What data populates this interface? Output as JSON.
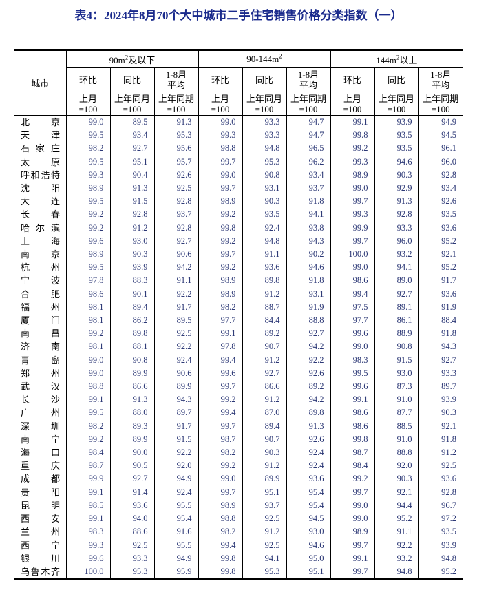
{
  "title": "表4：2024年8月70个大中城市二手住宅销售价格分类指数（一）",
  "colors": {
    "title": "#1a2a8c",
    "value": "#2c3876",
    "text": "#000000",
    "border": "#000000",
    "background": "#ffffff"
  },
  "table": {
    "city_header": "城市",
    "groups": [
      {
        "pre": "90m",
        "sup": "2",
        "post": "及以下"
      },
      {
        "pre": "90-144m",
        "sup": "2",
        "post": ""
      },
      {
        "pre": "144m",
        "sup": "2",
        "post": "以上"
      }
    ],
    "sub_headers": [
      "环比",
      "同比",
      "1-8月\n平均"
    ],
    "base_labels": [
      "上月\n=100",
      "上年同月\n=100",
      "上年同期\n=100"
    ],
    "rows": [
      {
        "city": "北京",
        "values": [
          "99.0",
          "89.5",
          "91.3",
          "99.0",
          "93.3",
          "94.7",
          "99.1",
          "93.9",
          "94.9"
        ]
      },
      {
        "city": "天津",
        "values": [
          "99.5",
          "93.4",
          "95.3",
          "99.3",
          "93.3",
          "94.7",
          "99.8",
          "93.5",
          "94.5"
        ]
      },
      {
        "city": "石家庄",
        "values": [
          "98.2",
          "92.7",
          "95.6",
          "98.8",
          "94.8",
          "96.5",
          "99.2",
          "93.5",
          "96.1"
        ]
      },
      {
        "city": "太原",
        "values": [
          "99.5",
          "95.1",
          "95.7",
          "99.7",
          "95.3",
          "96.2",
          "99.3",
          "94.6",
          "96.0"
        ]
      },
      {
        "city": "呼和浩特",
        "values": [
          "99.3",
          "90.4",
          "92.6",
          "99.0",
          "90.8",
          "93.4",
          "98.9",
          "90.3",
          "92.8"
        ]
      },
      {
        "city": "沈阳",
        "values": [
          "98.9",
          "91.3",
          "92.5",
          "99.7",
          "93.1",
          "93.7",
          "99.0",
          "92.9",
          "93.4"
        ]
      },
      {
        "city": "大连",
        "values": [
          "99.5",
          "91.5",
          "92.8",
          "98.9",
          "90.3",
          "91.8",
          "99.7",
          "91.3",
          "92.6"
        ]
      },
      {
        "city": "长春",
        "values": [
          "99.2",
          "92.8",
          "93.7",
          "99.2",
          "93.5",
          "94.1",
          "99.3",
          "92.8",
          "93.5"
        ]
      },
      {
        "city": "哈尔滨",
        "values": [
          "99.2",
          "91.2",
          "92.8",
          "99.8",
          "92.4",
          "93.8",
          "99.9",
          "93.3",
          "93.6"
        ]
      },
      {
        "city": "上海",
        "values": [
          "99.6",
          "93.0",
          "92.7",
          "99.2",
          "94.8",
          "94.3",
          "99.7",
          "96.0",
          "95.2"
        ]
      },
      {
        "city": "南京",
        "values": [
          "98.9",
          "90.3",
          "90.6",
          "99.7",
          "91.1",
          "90.2",
          "100.0",
          "93.2",
          "92.1"
        ]
      },
      {
        "city": "杭州",
        "values": [
          "99.5",
          "93.9",
          "94.2",
          "99.2",
          "93.6",
          "94.6",
          "99.0",
          "94.1",
          "95.2"
        ]
      },
      {
        "city": "宁波",
        "values": [
          "97.8",
          "88.3",
          "91.1",
          "98.9",
          "89.8",
          "91.8",
          "98.6",
          "89.0",
          "91.7"
        ]
      },
      {
        "city": "合肥",
        "values": [
          "98.6",
          "90.1",
          "92.2",
          "98.9",
          "91.2",
          "93.1",
          "99.4",
          "92.7",
          "93.6"
        ]
      },
      {
        "city": "福州",
        "values": [
          "98.1",
          "89.4",
          "91.7",
          "98.2",
          "88.7",
          "91.9",
          "97.5",
          "89.1",
          "91.9"
        ]
      },
      {
        "city": "厦门",
        "values": [
          "98.1",
          "86.2",
          "89.5",
          "97.7",
          "84.4",
          "88.8",
          "97.7",
          "86.1",
          "88.4"
        ]
      },
      {
        "city": "南昌",
        "values": [
          "99.2",
          "89.8",
          "92.5",
          "99.1",
          "89.2",
          "92.7",
          "99.6",
          "88.9",
          "91.8"
        ]
      },
      {
        "city": "济南",
        "values": [
          "98.1",
          "88.1",
          "92.2",
          "97.8",
          "90.7",
          "94.2",
          "99.0",
          "90.8",
          "94.3"
        ]
      },
      {
        "city": "青岛",
        "values": [
          "99.0",
          "90.8",
          "92.4",
          "99.4",
          "91.2",
          "92.2",
          "98.3",
          "91.5",
          "92.7"
        ]
      },
      {
        "city": "郑州",
        "values": [
          "99.0",
          "89.9",
          "90.6",
          "99.6",
          "92.7",
          "92.6",
          "99.5",
          "93.0",
          "93.3"
        ]
      },
      {
        "city": "武汉",
        "values": [
          "98.8",
          "86.6",
          "89.9",
          "99.7",
          "86.6",
          "89.2",
          "99.6",
          "87.3",
          "89.7"
        ]
      },
      {
        "city": "长沙",
        "values": [
          "99.1",
          "91.3",
          "94.3",
          "99.2",
          "91.2",
          "94.2",
          "99.1",
          "91.0",
          "93.9"
        ]
      },
      {
        "city": "广州",
        "values": [
          "99.5",
          "88.0",
          "89.7",
          "99.4",
          "87.0",
          "89.8",
          "98.6",
          "87.7",
          "90.3"
        ]
      },
      {
        "city": "深圳",
        "values": [
          "98.2",
          "89.3",
          "91.7",
          "99.7",
          "89.4",
          "91.3",
          "98.6",
          "88.5",
          "92.1"
        ]
      },
      {
        "city": "南宁",
        "values": [
          "99.2",
          "89.9",
          "91.5",
          "98.7",
          "90.7",
          "92.6",
          "99.8",
          "91.0",
          "91.8"
        ]
      },
      {
        "city": "海口",
        "values": [
          "98.4",
          "90.0",
          "92.2",
          "98.2",
          "90.3",
          "92.4",
          "98.7",
          "88.8",
          "91.2"
        ]
      },
      {
        "city": "重庆",
        "values": [
          "98.7",
          "90.5",
          "92.0",
          "99.2",
          "91.2",
          "92.4",
          "98.4",
          "92.0",
          "92.5"
        ]
      },
      {
        "city": "成都",
        "values": [
          "99.9",
          "92.7",
          "94.9",
          "99.0",
          "89.9",
          "93.6",
          "99.2",
          "90.3",
          "93.6"
        ]
      },
      {
        "city": "贵阳",
        "values": [
          "99.1",
          "91.4",
          "92.4",
          "99.7",
          "95.1",
          "95.4",
          "99.7",
          "92.1",
          "92.8"
        ]
      },
      {
        "city": "昆明",
        "values": [
          "98.5",
          "93.6",
          "95.5",
          "98.9",
          "93.7",
          "95.4",
          "99.0",
          "94.4",
          "96.7"
        ]
      },
      {
        "city": "西安",
        "values": [
          "99.1",
          "94.0",
          "95.4",
          "98.8",
          "92.5",
          "94.5",
          "99.0",
          "95.2",
          "97.2"
        ]
      },
      {
        "city": "兰州",
        "values": [
          "98.3",
          "88.6",
          "91.6",
          "98.2",
          "91.2",
          "93.0",
          "98.9",
          "91.1",
          "93.5"
        ]
      },
      {
        "city": "西宁",
        "values": [
          "99.3",
          "92.5",
          "95.5",
          "99.4",
          "92.5",
          "94.6",
          "99.7",
          "92.2",
          "93.9"
        ]
      },
      {
        "city": "银川",
        "values": [
          "99.6",
          "93.3",
          "94.9",
          "99.8",
          "94.1",
          "95.0",
          "99.1",
          "93.2",
          "94.8"
        ]
      },
      {
        "city": "乌鲁木齐",
        "values": [
          "100.0",
          "95.3",
          "95.9",
          "99.8",
          "95.3",
          "95.1",
          "99.7",
          "94.8",
          "95.2"
        ]
      }
    ]
  }
}
